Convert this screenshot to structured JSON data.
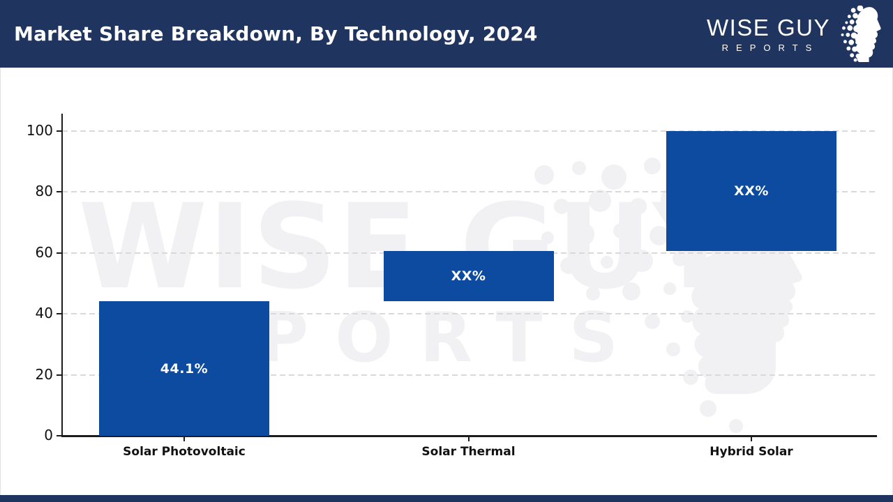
{
  "header": {
    "title": "Market Share Breakdown, By Technology, 2024",
    "logo": {
      "primary": "WISE GUY",
      "secondary": "REPORTS"
    }
  },
  "watermark": {
    "primary": "WISE GUY",
    "secondary": "REPORTS"
  },
  "chart_data": {
    "type": "bar",
    "subtype": "floating-segment-waterfall",
    "title": "Market Share Breakdown, By Technology, 2024",
    "categories": [
      "Solar Photovoltaic",
      "Solar Thermal",
      "Hybrid Solar"
    ],
    "series": [
      {
        "name": "Solar Photovoltaic",
        "start": 0,
        "end": 44.1,
        "label": "44.1%"
      },
      {
        "name": "Solar Thermal",
        "start": 44.1,
        "end": 60.6,
        "label": "XX%"
      },
      {
        "name": "Hybrid Solar",
        "start": 60.6,
        "end": 100,
        "label": "XX%"
      }
    ],
    "xlabel": "",
    "ylabel": "",
    "ylim": [
      0,
      105
    ],
    "yticks": [
      0,
      20,
      40,
      60,
      80,
      100
    ],
    "grid": {
      "horizontal": true,
      "style": "dashed"
    },
    "legend": "none",
    "colors": {
      "bar": "#0d4ba0",
      "bar_label": "#ffffff",
      "axis": "#1c1c1c",
      "gridline": "#d9d9d9",
      "tick_label": "#111111"
    }
  },
  "colors": {
    "header_bg": "#1f345e",
    "footer_bg": "#1f345e",
    "page_bg": "#ffffff",
    "watermark": "#f1f1f4"
  }
}
